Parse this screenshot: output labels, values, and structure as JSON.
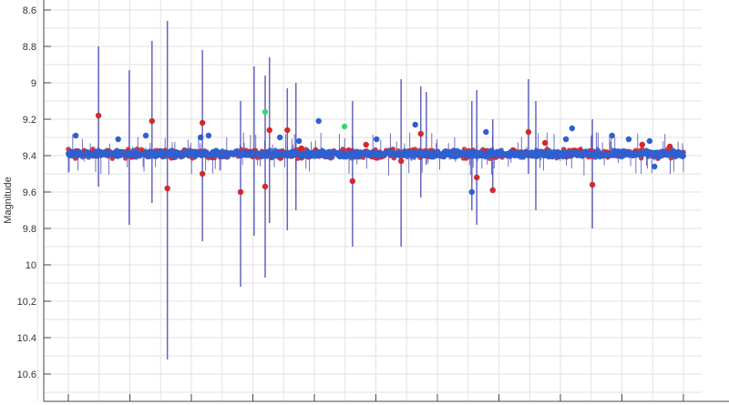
{
  "chart_data": {
    "type": "scatter",
    "title": "",
    "xlabel": "",
    "ylabel": "Magnitude",
    "y_inverted": true,
    "ylim": [
      8.55,
      10.75
    ],
    "xlim": [
      -0.4,
      10.3
    ],
    "yticks": [
      "8.6",
      "8.8",
      "9",
      "9.2",
      "9.4",
      "9.6",
      "9.8",
      "10",
      "10.2",
      "10.4",
      "10.6"
    ],
    "x_tick_count": 11,
    "x_tick_labels_shown": false,
    "grid": true,
    "colors": {
      "blue": "#2f5fd0",
      "red": "#d02a2a",
      "green": "#3ed36b",
      "errorbar": "#4a4ab8",
      "grid": "#e2e2e2"
    },
    "baseline": {
      "magnitude": 9.39,
      "scatter": 0.02,
      "x_range": [
        0,
        10
      ]
    },
    "errorbars": [
      {
        "x": 0.49,
        "lo": 8.8,
        "hi": 9.57
      },
      {
        "x": 0.99,
        "lo": 8.93,
        "hi": 9.78
      },
      {
        "x": 1.36,
        "lo": 8.77,
        "hi": 9.66
      },
      {
        "x": 1.61,
        "lo": 8.66,
        "hi": 10.52
      },
      {
        "x": 2.18,
        "lo": 8.82,
        "hi": 9.87
      },
      {
        "x": 2.8,
        "lo": 9.1,
        "hi": 10.12
      },
      {
        "x": 3.02,
        "lo": 8.91,
        "hi": 9.84
      },
      {
        "x": 3.2,
        "lo": 8.96,
        "hi": 10.07
      },
      {
        "x": 3.27,
        "lo": 8.86,
        "hi": 9.77
      },
      {
        "x": 3.56,
        "lo": 9.03,
        "hi": 9.81
      },
      {
        "x": 3.7,
        "lo": 9.0,
        "hi": 9.7
      },
      {
        "x": 4.62,
        "lo": 9.1,
        "hi": 9.9
      },
      {
        "x": 5.41,
        "lo": 8.98,
        "hi": 9.9
      },
      {
        "x": 5.73,
        "lo": 9.02,
        "hi": 9.63
      },
      {
        "x": 5.82,
        "lo": 9.05,
        "hi": 9.45
      },
      {
        "x": 6.56,
        "lo": 9.1,
        "hi": 9.7
      },
      {
        "x": 6.64,
        "lo": 9.04,
        "hi": 9.78
      },
      {
        "x": 6.9,
        "lo": 9.2,
        "hi": 9.6
      },
      {
        "x": 7.48,
        "lo": 8.98,
        "hi": 9.5
      },
      {
        "x": 7.6,
        "lo": 9.1,
        "hi": 9.7
      },
      {
        "x": 8.52,
        "lo": 9.2,
        "hi": 9.8
      }
    ],
    "series": [
      {
        "color": "red",
        "points": [
          [
            0.49,
            9.18
          ],
          [
            1.36,
            9.21
          ],
          [
            1.61,
            9.58
          ],
          [
            2.18,
            9.5
          ],
          [
            2.18,
            9.22
          ],
          [
            2.8,
            9.6
          ],
          [
            3.2,
            9.57
          ],
          [
            3.27,
            9.26
          ],
          [
            3.56,
            9.26
          ],
          [
            3.79,
            9.36
          ],
          [
            4.62,
            9.54
          ],
          [
            4.84,
            9.34
          ],
          [
            5.41,
            9.43
          ],
          [
            5.73,
            9.28
          ],
          [
            6.64,
            9.52
          ],
          [
            6.9,
            9.59
          ],
          [
            7.48,
            9.27
          ],
          [
            7.75,
            9.33
          ],
          [
            8.52,
            9.56
          ],
          [
            9.33,
            9.34
          ],
          [
            9.78,
            9.35
          ]
        ]
      },
      {
        "color": "blue",
        "points": [
          [
            0.12,
            9.29
          ],
          [
            0.81,
            9.31
          ],
          [
            1.26,
            9.29
          ],
          [
            2.15,
            9.3
          ],
          [
            2.28,
            9.29
          ],
          [
            3.44,
            9.3
          ],
          [
            3.75,
            9.32
          ],
          [
            4.07,
            9.21
          ],
          [
            5.01,
            9.31
          ],
          [
            5.64,
            9.23
          ],
          [
            6.56,
            9.6
          ],
          [
            6.79,
            9.27
          ],
          [
            8.09,
            9.31
          ],
          [
            8.19,
            9.25
          ],
          [
            8.84,
            9.29
          ],
          [
            9.11,
            9.31
          ],
          [
            9.45,
            9.32
          ],
          [
            9.53,
            9.46
          ]
        ]
      },
      {
        "color": "green",
        "points": [
          [
            3.2,
            9.16
          ],
          [
            4.49,
            9.24
          ]
        ]
      }
    ]
  }
}
